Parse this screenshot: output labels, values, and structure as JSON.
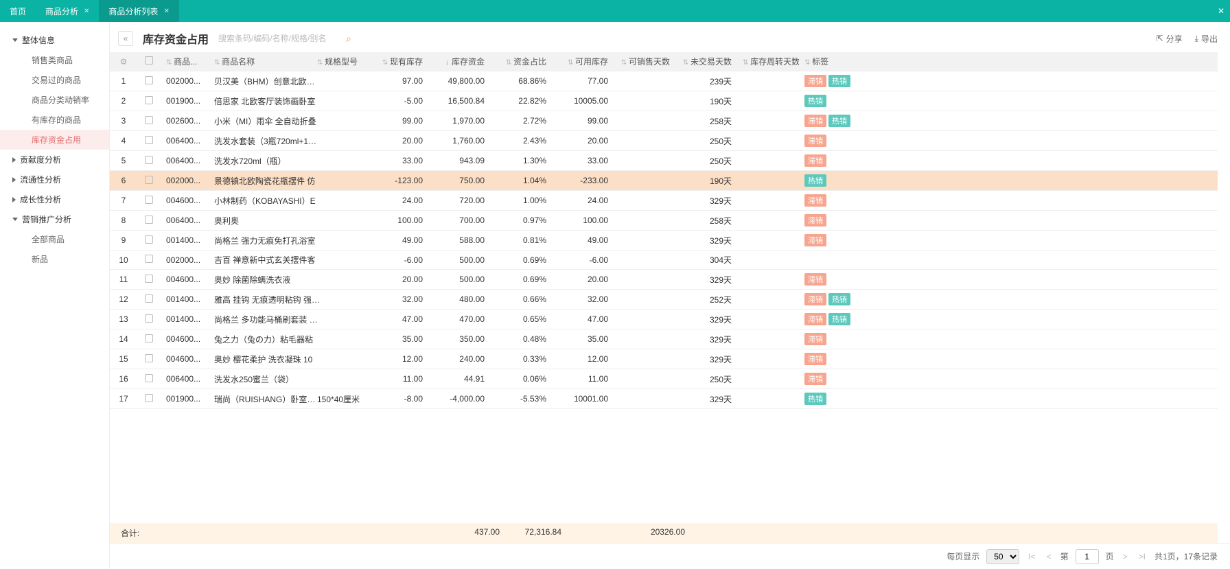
{
  "tabs": [
    {
      "label": "首页",
      "closable": false,
      "active": false
    },
    {
      "label": "商品分析",
      "closable": true,
      "active": false
    },
    {
      "label": "商品分析列表",
      "closable": true,
      "active": true
    }
  ],
  "sidebar": {
    "groups": [
      {
        "label": "整体信息",
        "expanded": true,
        "items": [
          {
            "label": "销售类商品"
          },
          {
            "label": "交易过的商品"
          },
          {
            "label": "商品分类动销率"
          },
          {
            "label": "有库存的商品"
          },
          {
            "label": "库存资金占用",
            "selected": true
          }
        ]
      },
      {
        "label": "贡献度分析",
        "expanded": false,
        "items": []
      },
      {
        "label": "流通性分析",
        "expanded": false,
        "items": []
      },
      {
        "label": "成长性分析",
        "expanded": false,
        "items": []
      },
      {
        "label": "营销推广分析",
        "expanded": true,
        "items": [
          {
            "label": "全部商品"
          },
          {
            "label": "新品"
          }
        ]
      }
    ]
  },
  "page": {
    "title": "库存资金占用",
    "search_placeholder": "搜索条码/编码/名称/规格/别名",
    "share": "分享",
    "export": "导出"
  },
  "columns": [
    {
      "key": "idx",
      "label": "",
      "cls": "col-idx"
    },
    {
      "key": "chk",
      "label": "",
      "cls": "col-chk"
    },
    {
      "key": "code",
      "label": "商品...",
      "cls": "col-code",
      "sortable": true
    },
    {
      "key": "name",
      "label": "商品名称",
      "cls": "col-name",
      "sortable": true
    },
    {
      "key": "spec",
      "label": "规格型号",
      "cls": "col-spec",
      "sortable": true
    },
    {
      "key": "stock",
      "label": "现有库存",
      "cls": "col-n num",
      "sortable": true
    },
    {
      "key": "capital",
      "label": "库存资金",
      "cls": "col-n num",
      "sort": "desc"
    },
    {
      "key": "ratio",
      "label": "资金占比",
      "cls": "col-n num",
      "sortable": true
    },
    {
      "key": "avail",
      "label": "可用库存",
      "cls": "col-n num",
      "sortable": true
    },
    {
      "key": "saledays",
      "label": "可销售天数",
      "cls": "col-n num",
      "sortable": true
    },
    {
      "key": "notrade",
      "label": "未交易天数",
      "cls": "col-n num",
      "sortable": true
    },
    {
      "key": "turnover",
      "label": "库存周转天数",
      "cls": "col-n num",
      "sortable": true
    },
    {
      "key": "tags",
      "label": "标签",
      "cls": "col-tag",
      "sortable": true
    }
  ],
  "rows": [
    {
      "idx": 1,
      "code": "002000...",
      "name": "贝汉美（BHM）创意北欧…",
      "spec": "",
      "stock": "97.00",
      "capital": "49,800.00",
      "ratio": "68.86%",
      "avail": "77.00",
      "saledays": "",
      "notrade": "239天",
      "turnover": "",
      "tags": [
        "slow",
        "hot"
      ]
    },
    {
      "idx": 2,
      "code": "001900...",
      "name": "倍思家 北欧客厅装饰画卧室",
      "spec": "",
      "stock": "-5.00",
      "capital": "16,500.84",
      "ratio": "22.82%",
      "avail": "10005.00",
      "saledays": "",
      "notrade": "190天",
      "turnover": "",
      "tags": [
        "hot"
      ]
    },
    {
      "idx": 3,
      "code": "002600...",
      "name": "小米（MI）雨伞 全自动折叠",
      "spec": "",
      "stock": "99.00",
      "capital": "1,970.00",
      "ratio": "2.72%",
      "avail": "99.00",
      "saledays": "",
      "notrade": "258天",
      "turnover": "",
      "tags": [
        "slow",
        "hot"
      ]
    },
    {
      "idx": 4,
      "code": "006400...",
      "name": "洗发水套装（3瓶720ml+1…",
      "spec": "",
      "stock": "20.00",
      "capital": "1,760.00",
      "ratio": "2.43%",
      "avail": "20.00",
      "saledays": "",
      "notrade": "250天",
      "turnover": "",
      "tags": [
        "slow"
      ]
    },
    {
      "idx": 5,
      "code": "006400...",
      "name": "洗发水720ml（瓶）",
      "spec": "",
      "stock": "33.00",
      "capital": "943.09",
      "ratio": "1.30%",
      "avail": "33.00",
      "saledays": "",
      "notrade": "250天",
      "turnover": "",
      "tags": [
        "slow"
      ]
    },
    {
      "idx": 6,
      "code": "002000...",
      "name": "景德镇北欧陶瓷花瓶摆件 仿",
      "spec": "",
      "stock": "-123.00",
      "capital": "750.00",
      "ratio": "1.04%",
      "avail": "-233.00",
      "saledays": "",
      "notrade": "190天",
      "turnover": "",
      "tags": [
        "hot"
      ],
      "hl": true
    },
    {
      "idx": 7,
      "code": "004600...",
      "name": "小林制药（KOBAYASHI）E",
      "spec": "",
      "stock": "24.00",
      "capital": "720.00",
      "ratio": "1.00%",
      "avail": "24.00",
      "saledays": "",
      "notrade": "329天",
      "turnover": "",
      "tags": [
        "slow"
      ]
    },
    {
      "idx": 8,
      "code": "006400...",
      "name": "奥利奥",
      "spec": "",
      "stock": "100.00",
      "capital": "700.00",
      "ratio": "0.97%",
      "avail": "100.00",
      "saledays": "",
      "notrade": "258天",
      "turnover": "",
      "tags": [
        "slow"
      ]
    },
    {
      "idx": 9,
      "code": "001400...",
      "name": "尚格兰 强力无痕免打孔浴室",
      "spec": "",
      "stock": "49.00",
      "capital": "588.00",
      "ratio": "0.81%",
      "avail": "49.00",
      "saledays": "",
      "notrade": "329天",
      "turnover": "",
      "tags": [
        "slow"
      ]
    },
    {
      "idx": 10,
      "code": "002000...",
      "name": "吉百 禅意新中式玄关摆件客",
      "spec": "",
      "stock": "-6.00",
      "capital": "500.00",
      "ratio": "0.69%",
      "avail": "-6.00",
      "saledays": "",
      "notrade": "304天",
      "turnover": "",
      "tags": []
    },
    {
      "idx": 11,
      "code": "004600...",
      "name": "奥妙 除菌除螨洗衣液",
      "spec": "",
      "stock": "20.00",
      "capital": "500.00",
      "ratio": "0.69%",
      "avail": "20.00",
      "saledays": "",
      "notrade": "329天",
      "turnover": "",
      "tags": [
        "slow"
      ]
    },
    {
      "idx": 12,
      "code": "001400...",
      "name": "雅高 挂钩 无痕透明粘钩 强…",
      "spec": "",
      "stock": "32.00",
      "capital": "480.00",
      "ratio": "0.66%",
      "avail": "32.00",
      "saledays": "",
      "notrade": "252天",
      "turnover": "",
      "tags": [
        "slow",
        "hot"
      ]
    },
    {
      "idx": 13,
      "code": "001400...",
      "name": "尚格兰 多功能马桶刷套装 …",
      "spec": "",
      "stock": "47.00",
      "capital": "470.00",
      "ratio": "0.65%",
      "avail": "47.00",
      "saledays": "",
      "notrade": "329天",
      "turnover": "",
      "tags": [
        "slow",
        "hot"
      ]
    },
    {
      "idx": 14,
      "code": "004600...",
      "name": "兔之力（兔の力）粘毛器粘",
      "spec": "",
      "stock": "35.00",
      "capital": "350.00",
      "ratio": "0.48%",
      "avail": "35.00",
      "saledays": "",
      "notrade": "329天",
      "turnover": "",
      "tags": [
        "slow"
      ]
    },
    {
      "idx": 15,
      "code": "004600...",
      "name": "奥妙 樱花柔护 洗衣凝珠 10",
      "spec": "",
      "stock": "12.00",
      "capital": "240.00",
      "ratio": "0.33%",
      "avail": "12.00",
      "saledays": "",
      "notrade": "329天",
      "turnover": "",
      "tags": [
        "slow"
      ]
    },
    {
      "idx": 16,
      "code": "006400...",
      "name": "洗发水250蜜兰（袋）",
      "spec": "",
      "stock": "11.00",
      "capital": "44.91",
      "ratio": "0.06%",
      "avail": "11.00",
      "saledays": "",
      "notrade": "250天",
      "turnover": "",
      "tags": [
        "slow"
      ]
    },
    {
      "idx": 17,
      "code": "001900...",
      "name": "瑞尚（RUISHANG）卧室…",
      "spec": "150*40厘米",
      "stock": "-8.00",
      "capital": "-4,000.00",
      "ratio": "-5.53%",
      "avail": "10001.00",
      "saledays": "",
      "notrade": "329天",
      "turnover": "",
      "tags": [
        "hot"
      ]
    }
  ],
  "totals": {
    "label": "合计:",
    "stock": "437.00",
    "capital": "72,316.84",
    "avail": "20326.00"
  },
  "badges": {
    "slow": "滞销",
    "hot": "热销"
  },
  "footer": {
    "per_page_label": "每页显示",
    "per_page": "50",
    "page_label_pre": "第",
    "page": "1",
    "page_label_post": "页",
    "summary": "共1页，17条记录"
  }
}
